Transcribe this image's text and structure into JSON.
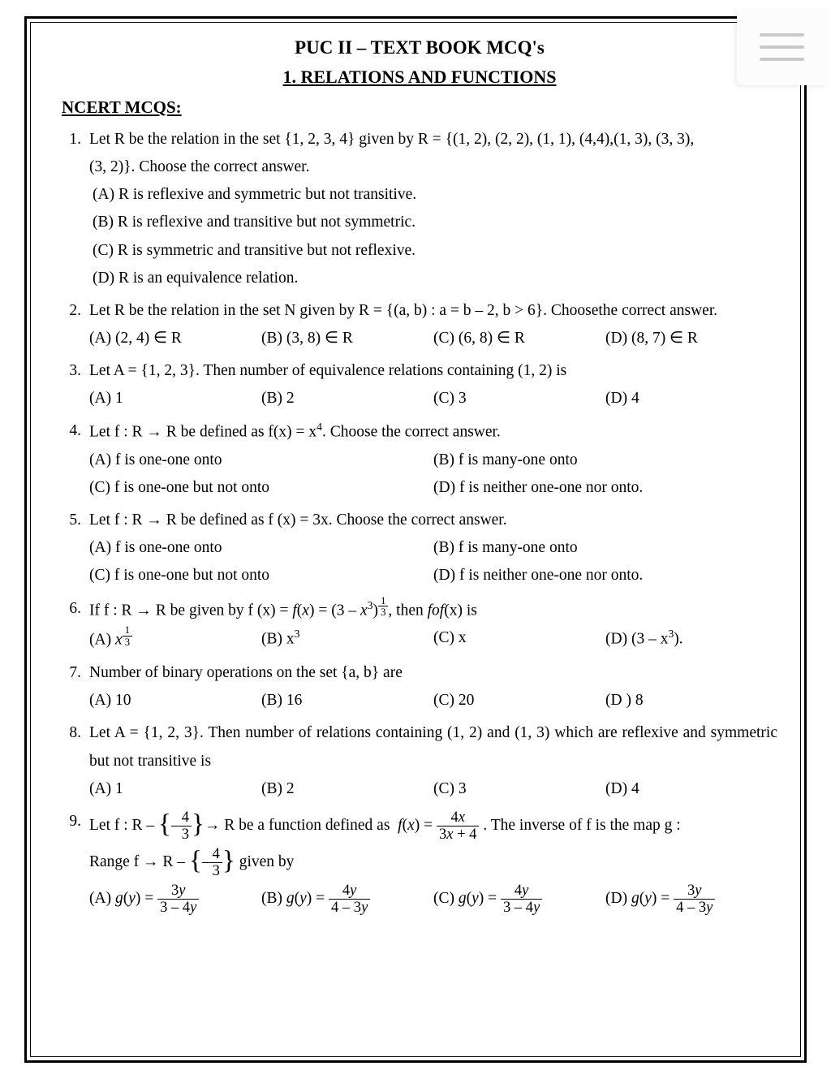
{
  "title": "PUC II – TEXT BOOK MCQ's",
  "chapter": "1. RELATIONS AND FUNCTIONS",
  "section": "NCERT MCQS:",
  "q1": {
    "text_a": "Let R be the relation in the set {1, 2, 3, 4} given by R = {(1, 2), (2, 2), (1, 1), (4,4),(1, 3), (3, 3),",
    "text_b": "(3, 2)}. Choose the correct answer.",
    "A": "(A) R is reflexive and symmetric but not transitive.",
    "B": "(B) R is reflexive and transitive but not symmetric.",
    "C": "(C) R is symmetric and transitive but not reflexive.",
    "D": "(D) R is an equivalence relation."
  },
  "q2": {
    "text": "Let R be the relation in the set N given by R = {(a, b) : a = b – 2, b > 6}. Choosethe correct answer.",
    "A": "(A) (2, 4) ∈ R",
    "B": "(B) (3, 8) ∈ R",
    "C": "(C) (6, 8) ∈ R",
    "D": "(D) (8, 7) ∈ R"
  },
  "q3": {
    "text": "Let A = {1, 2, 3}. Then number of equivalence relations containing (1, 2) is",
    "A": "(A) 1",
    "B": "(B) 2",
    "C": "(C) 3",
    "D": "(D) 4"
  },
  "q4": {
    "A": "(A) f is one-one onto",
    "B": "(B) f is many-one onto",
    "C": "(C) f is one-one but not onto",
    "D": "(D) f is neither one-one nor onto."
  },
  "q5": {
    "text": "Let f : R → R be defined as f (x) = 3x. Choose the correct answer.",
    "A": "(A) f is one-one onto",
    "B": "(B) f is many-one onto",
    "C": "(C) f is one-one but not onto",
    "D": "(D) f is neither one-one nor onto."
  },
  "q6": {
    "C": "(C) x"
  },
  "q7": {
    "text": "Number of binary operations on the set {a, b} are",
    "A": "(A) 10",
    "B": "(B) 16",
    "C": "(C) 20",
    "D": "(D ) 8"
  },
  "q8": {
    "text": "Let A = {1, 2, 3}. Then number of relations containing (1, 2) and (1, 3) which are reflexive and symmetric but not transitive is",
    "A": "(A) 1",
    "B": "(B) 2",
    "C": "(C) 3",
    "D": "(D) 4"
  }
}
